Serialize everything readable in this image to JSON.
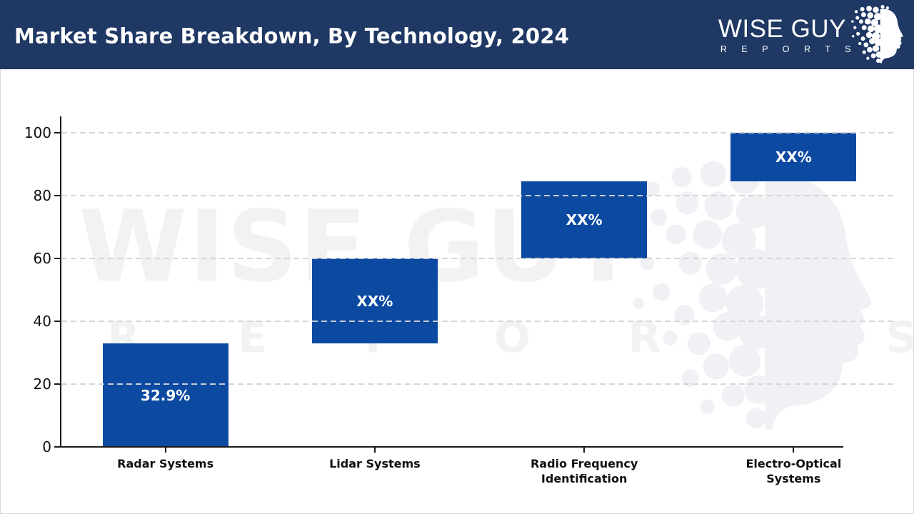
{
  "header": {
    "title": "Market Share Breakdown, By Technology, 2024",
    "logo": {
      "primary": "WISE GUY",
      "secondary": "R E P O R T S"
    }
  },
  "watermark": {
    "primary": "WISE GUY",
    "secondary": "R E P O R T S"
  },
  "colors": {
    "header_bg": "#1f3864",
    "bar": "#0c4aa2",
    "grid": "#d4d4d4",
    "axis": "#1a1a1a",
    "watermark_text": "#f1f2f4",
    "watermark_face": "#eff1f4",
    "bar_label": "#ffffff",
    "page_border": "#d9d9d9"
  },
  "chart_data": {
    "type": "bar",
    "subtype": "waterfall-breakdown",
    "title": "Market Share Breakdown, By Technology, 2024",
    "categories": [
      "Radar Systems",
      "Lidar Systems",
      "Radio Frequency Identification",
      "Electro-Optical Systems"
    ],
    "segments": [
      {
        "category": "Radar Systems",
        "start": 0,
        "end": 32.9,
        "value": 32.9,
        "label": "32.9%"
      },
      {
        "category": "Lidar Systems",
        "start": 32.9,
        "end": 60.0,
        "value": 27.1,
        "label": "XX%"
      },
      {
        "category": "Radio Frequency Identification",
        "start": 60.0,
        "end": 84.5,
        "value": 24.5,
        "label": "XX%"
      },
      {
        "category": "Electro-Optical Systems",
        "start": 84.5,
        "end": 100.0,
        "value": 15.5,
        "label": "XX%"
      }
    ],
    "yticks": [
      0,
      20,
      40,
      60,
      80,
      100
    ],
    "ylim": [
      0,
      105
    ],
    "xlabel": "",
    "ylabel": "",
    "grid": "dashed-horizontal-over-bars",
    "legend": "none",
    "bar_color": "#0c4aa2",
    "bar_label_color": "#ffffff"
  }
}
